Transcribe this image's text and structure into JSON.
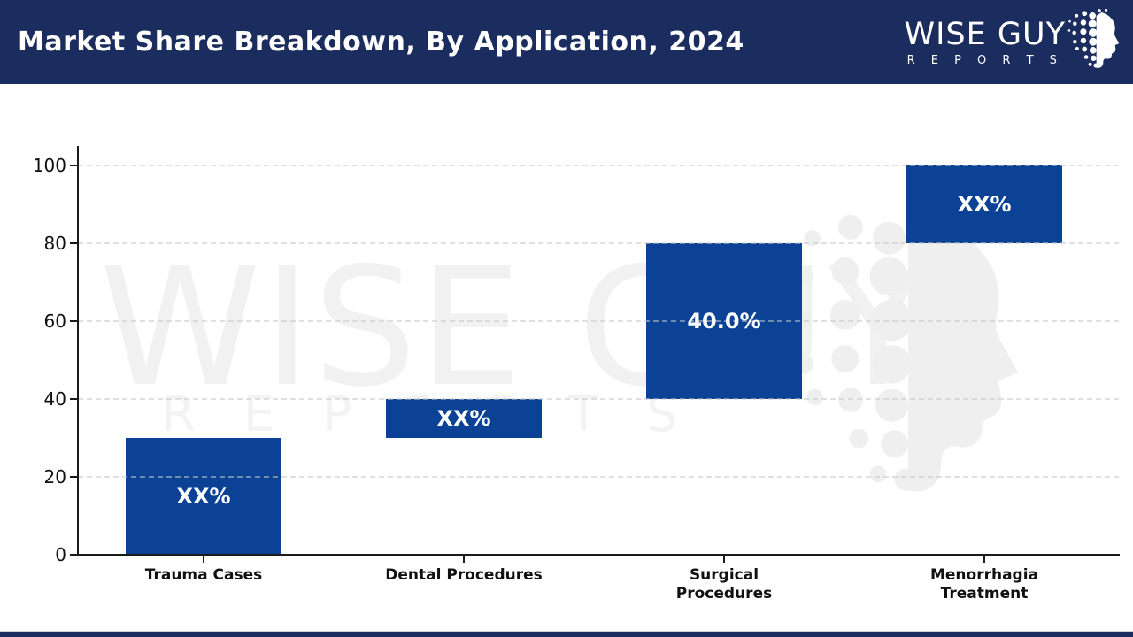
{
  "header": {
    "title": "Market Share Breakdown, By Application, 2024",
    "brand": {
      "line1": "WISE GUY",
      "line2": "R E P O R T S"
    },
    "bg_color": "#1b2d5e"
  },
  "watermark": {
    "line1": "WISE GUY",
    "line2": "R E P O R T S"
  },
  "chart_data": {
    "type": "bar",
    "subtype": "floating-waterfall",
    "title": "Market Share Breakdown, By Application, 2024",
    "categories": [
      "Trauma Cases",
      "Dental Procedures",
      "Surgical Procedures",
      "Menorrhagia Treatment"
    ],
    "bars": [
      {
        "category": "Trauma Cases",
        "display": "Trauma Cases",
        "start": 0,
        "end": 30,
        "label": "XX%"
      },
      {
        "category": "Dental Procedures",
        "display": "Dental Procedures",
        "start": 30,
        "end": 40,
        "label": "XX%"
      },
      {
        "category": "Surgical Procedures",
        "display": "Surgical\nProcedures",
        "start": 40,
        "end": 80,
        "label": "40.0%"
      },
      {
        "category": "Menorrhagia Treatment",
        "display": "Menorrhagia\nTreatment",
        "start": 80,
        "end": 100,
        "label": "XX%"
      }
    ],
    "yticks": [
      0,
      20,
      40,
      60,
      80,
      100
    ],
    "ylim": [
      0,
      105
    ],
    "xlabel": "",
    "ylabel": "",
    "grid": "dashed-horizontal",
    "legend": "none",
    "bar_color": "#0b4296",
    "bar_label_color": "#ffffff",
    "axis_color": "#1a1a1a"
  }
}
